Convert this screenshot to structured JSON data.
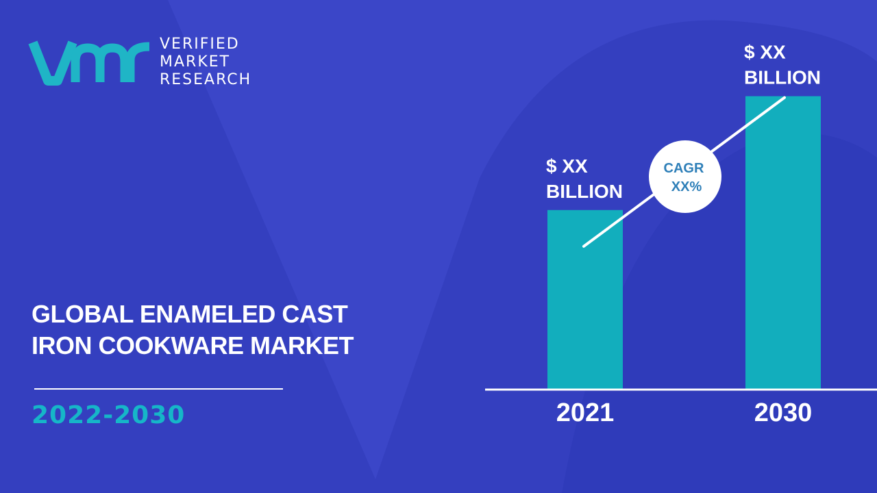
{
  "brand": {
    "line1": "VERIFIED",
    "line2": "MARKET",
    "line3": "RESEARCH",
    "logo_icon": "vmr-logo-icon"
  },
  "title": {
    "line1": "GLOBAL ENAMELED CAST",
    "line2": "IRON COOKWARE MARKET"
  },
  "period": "2022-2030",
  "colors": {
    "background": "#3b46c8",
    "background_shape": "#2b37b4",
    "bar": "#12aebd",
    "accent_text": "#16b6c8",
    "cagr_text": "#2e7fb8"
  },
  "chart_data": {
    "type": "bar",
    "categories": [
      "2021",
      "2030"
    ],
    "values": [
      5.5,
      9.0
    ],
    "value_labels": [
      {
        "line1": "$ XX",
        "line2": "BILLION"
      },
      {
        "line1": "$ XX",
        "line2": "BILLION"
      }
    ],
    "ylim": [
      0,
      10
    ],
    "cagr": {
      "line1": "CAGR",
      "line2": "XX%"
    },
    "grid": false,
    "title": "",
    "xlabel": "",
    "ylabel": ""
  }
}
